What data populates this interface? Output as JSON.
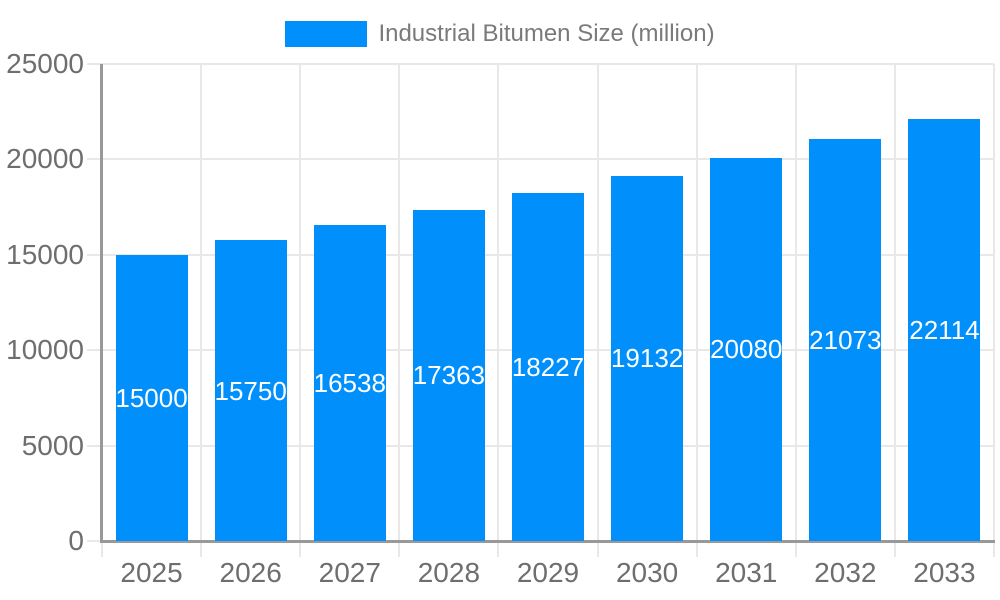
{
  "chart_data": {
    "type": "bar",
    "title": "Industrial Bitumen Size (million)",
    "categories": [
      "2025",
      "2026",
      "2027",
      "2028",
      "2029",
      "2030",
      "2031",
      "2032",
      "2033"
    ],
    "series": [
      {
        "name": "Industrial Bitumen Size (million)",
        "values": [
          15000,
          15750,
          16538,
          17363,
          18227,
          19132,
          20080,
          21073,
          22114
        ]
      }
    ],
    "xlabel": "",
    "ylabel": "",
    "ylim": [
      0,
      25000
    ],
    "yticks": [
      0,
      5000,
      10000,
      15000,
      20000,
      25000
    ],
    "grid": "horizontal and vertical light-gray gridlines with ticks outside axes",
    "legend_position": "top-center",
    "data_labels": "series values rendered in white, centered vertically inside each bar"
  },
  "legend": {
    "label": "Industrial Bitumen Size (million)"
  },
  "colors": {
    "bar": "#008FFB",
    "bar_label_text": "#FFFFFF",
    "axis_label_text": "#6E6E6E",
    "legend_text": "#7A7A7A",
    "gridline": "#E8E8E8",
    "axis_line": "#999999",
    "background": "#FFFFFF"
  }
}
